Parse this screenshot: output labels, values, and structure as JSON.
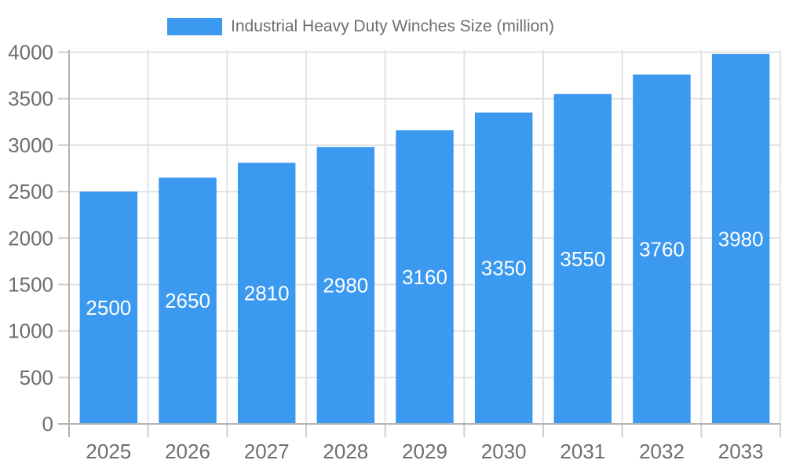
{
  "chart_data": {
    "type": "bar",
    "title": "Industrial Heavy Duty Winches Size (million)",
    "categories": [
      "2025",
      "2026",
      "2027",
      "2028",
      "2029",
      "2030",
      "2031",
      "2032",
      "2033"
    ],
    "series": [
      {
        "name": "Industrial Heavy Duty Winches Size (million)",
        "values": [
          2500,
          2650,
          2810,
          2980,
          3160,
          3350,
          3550,
          3760,
          3980
        ]
      }
    ],
    "xlabel": "",
    "ylabel": "",
    "ylim": [
      0,
      4000
    ],
    "ytick_step": 500,
    "grid": true,
    "legend_position": "top",
    "value_labels_position": "inside-center"
  },
  "legend": {
    "label": "Industrial Heavy Duty Winches Size (million)"
  },
  "theme": {
    "bar_color": "#3B99F0",
    "value_label_color": "#FFFFFF",
    "axis_line_color": "#B3B3B3",
    "tick_mark_color": "#CFCFCF",
    "grid_color": "#E2E2E2",
    "tick_label_color": "#6E6E6E",
    "legend_text_color": "#6E6E6E",
    "background_color": "#FFFFFF"
  }
}
